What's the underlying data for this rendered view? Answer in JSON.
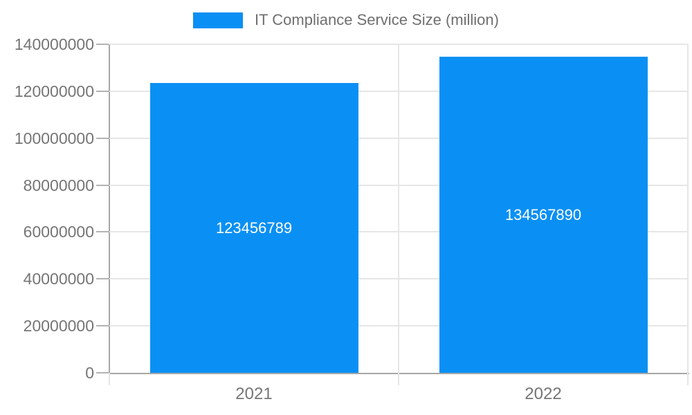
{
  "chart_data": {
    "type": "bar",
    "title": "",
    "legend_label": "IT Compliance Service Size (million)",
    "legend_position": "top-center",
    "categories": [
      "2021",
      "2022"
    ],
    "series": [
      {
        "name": "IT Compliance Service Size (million)",
        "values": [
          123456789,
          134567890
        ],
        "data_labels": [
          "123456789",
          "134567890"
        ]
      }
    ],
    "xlabel": "",
    "ylabel": "",
    "ylim": [
      0,
      140000000
    ],
    "ytick_step": 20000000,
    "ytick_labels": [
      "0",
      "20000000",
      "40000000",
      "60000000",
      "80000000",
      "100000000",
      "120000000",
      "140000000"
    ],
    "grid": true,
    "data_labels_position": "inside-center",
    "colors": {
      "bar": "#0a90f4",
      "gridline": "#e6e6e6",
      "axis_line": "#a6a6a6",
      "tick_mark": "#b3b3b3",
      "tick_label_text": "#757575",
      "legend_text": "#6f6f6f",
      "data_label_text": "#ffffff",
      "background": "#ffffff"
    }
  }
}
